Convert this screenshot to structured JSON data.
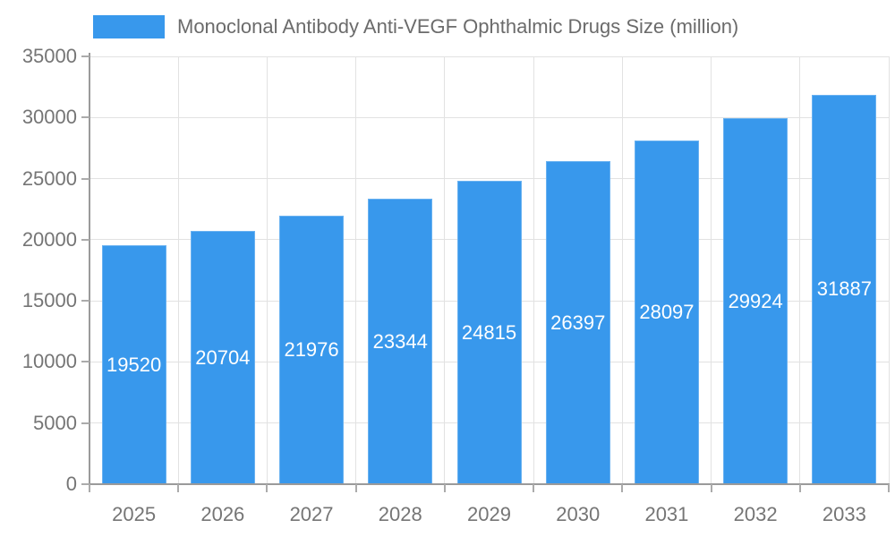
{
  "chart_data": {
    "type": "bar",
    "title": "",
    "legend_label": "Monoclonal Antibody Anti-VEGF Ophthalmic Drugs Size (million)",
    "legend_position": "top-left",
    "categories": [
      "2025",
      "2026",
      "2027",
      "2028",
      "2029",
      "2030",
      "2031",
      "2032",
      "2033"
    ],
    "values": [
      19520,
      20704,
      21976,
      23344,
      24815,
      26397,
      28097,
      29924,
      31887
    ],
    "value_labels": [
      "19520",
      "20704",
      "21976",
      "23344",
      "24815",
      "26397",
      "28097",
      "29924",
      "31887"
    ],
    "xlabel": "",
    "ylabel": "",
    "ylim": [
      0,
      35000
    ],
    "y_ticks": [
      0,
      5000,
      10000,
      15000,
      20000,
      25000,
      30000,
      35000
    ],
    "y_tick_labels": [
      "0",
      "5000",
      "10000",
      "15000",
      "20000",
      "25000",
      "30000",
      "35000"
    ],
    "grid": "both",
    "value_label_position": "inside-center",
    "colors": {
      "bar": "#3898EC",
      "value_label": "#ffffff",
      "tick_label": "#757575",
      "legend_text": "#6b6b6b",
      "axis": "#9a9a9a",
      "grid": "#e2e2e2",
      "background": "#ffffff"
    }
  }
}
